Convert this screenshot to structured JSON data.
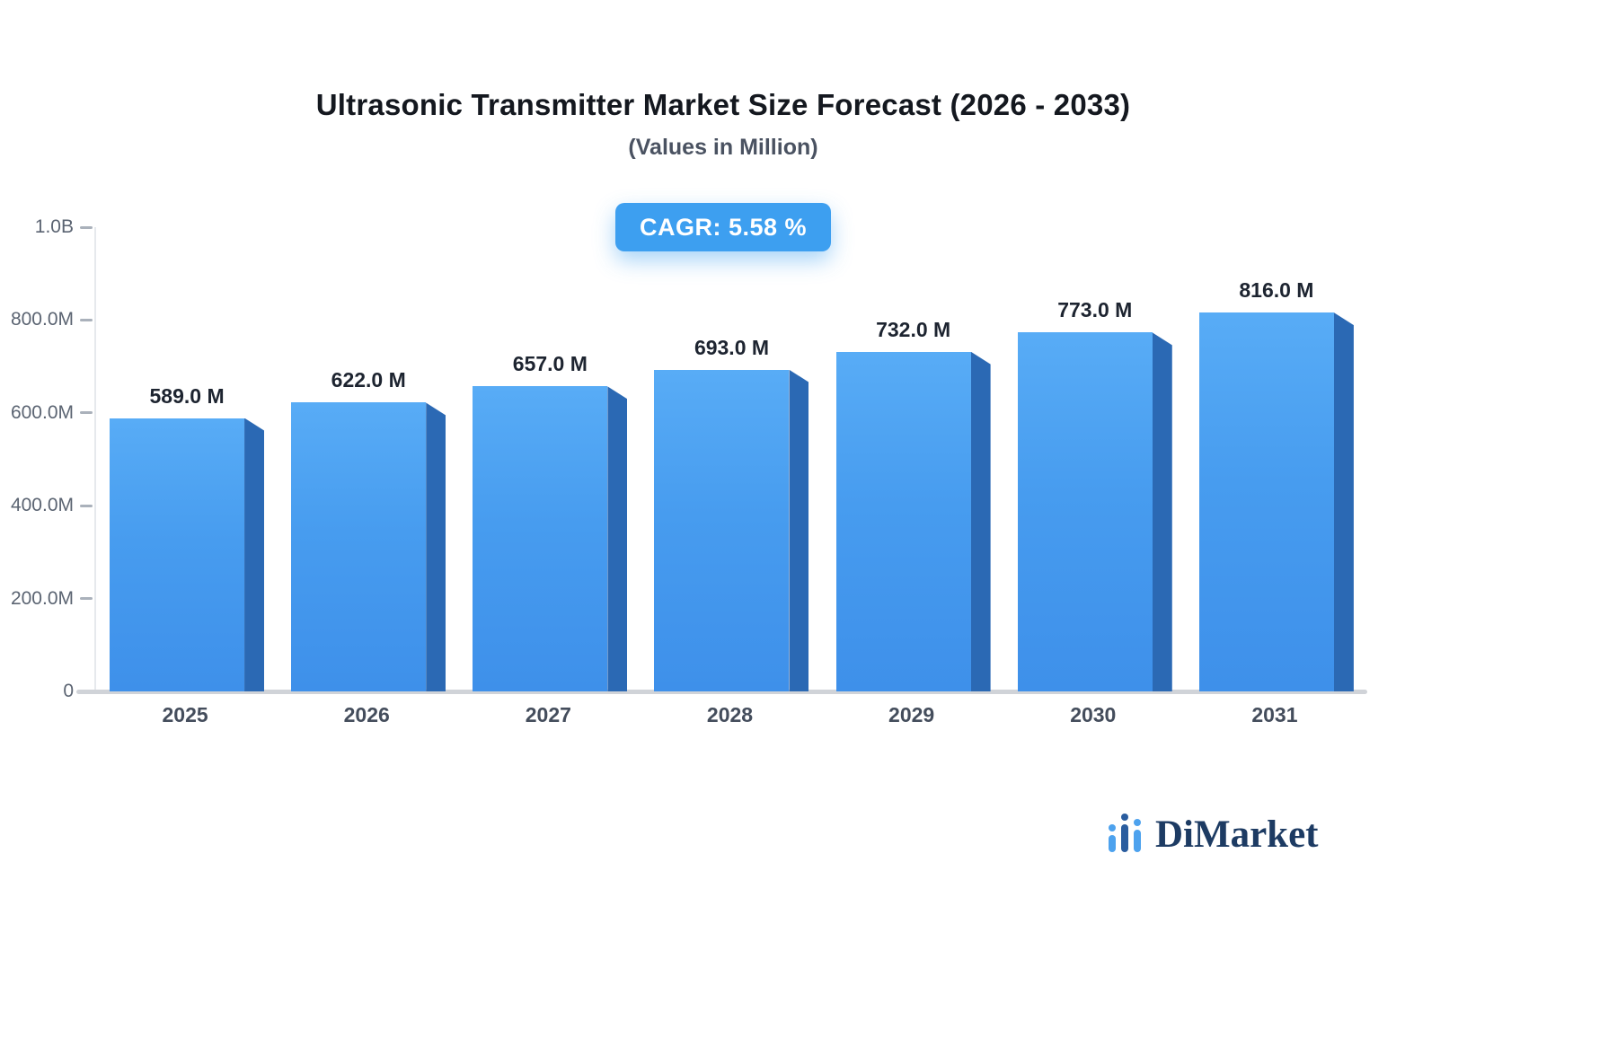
{
  "header": {
    "title": "Ultrasonic Transmitter Market Size Forecast (2026 - 2033)",
    "subtitle": "(Values in Million)"
  },
  "badge": {
    "label": "CAGR: 5.58 %"
  },
  "brand": {
    "name": "DiMarket",
    "icon": "bar-chart-logo-icon"
  },
  "colors": {
    "bar_face_top": "#58acf6",
    "bar_face_bottom": "#3e90ea",
    "bar_side": "#2b69b4",
    "badge_background": "#3d9ff0",
    "axis_line": "#d0d3d8",
    "brand_text": "#1d3b63"
  },
  "chart_data": {
    "type": "bar",
    "title": "Ultrasonic Transmitter Market Size Forecast (2026 - 2033)",
    "subtitle": "(Values in Million)",
    "cagr_label": "CAGR: 5.58 %",
    "categories": [
      "2025",
      "2026",
      "2027",
      "2028",
      "2029",
      "2030",
      "2031"
    ],
    "values": [
      589,
      622,
      657,
      693,
      732,
      773,
      816
    ],
    "value_labels": [
      "589.0 M",
      "622.0 M",
      "657.0 M",
      "693.0 M",
      "732.0 M",
      "773.0 M",
      "816.0 M"
    ],
    "unit": "Million",
    "xlabel": "",
    "ylabel": "",
    "ylim": [
      0,
      1000
    ],
    "yticks": [
      {
        "value": 0,
        "label": "0"
      },
      {
        "value": 200,
        "label": "200.0M"
      },
      {
        "value": 400,
        "label": "400.0M"
      },
      {
        "value": 600,
        "label": "600.0M"
      },
      {
        "value": 800,
        "label": "800.0M"
      },
      {
        "value": 1000,
        "label": "1.0B"
      }
    ],
    "grid": false,
    "legend": false
  }
}
